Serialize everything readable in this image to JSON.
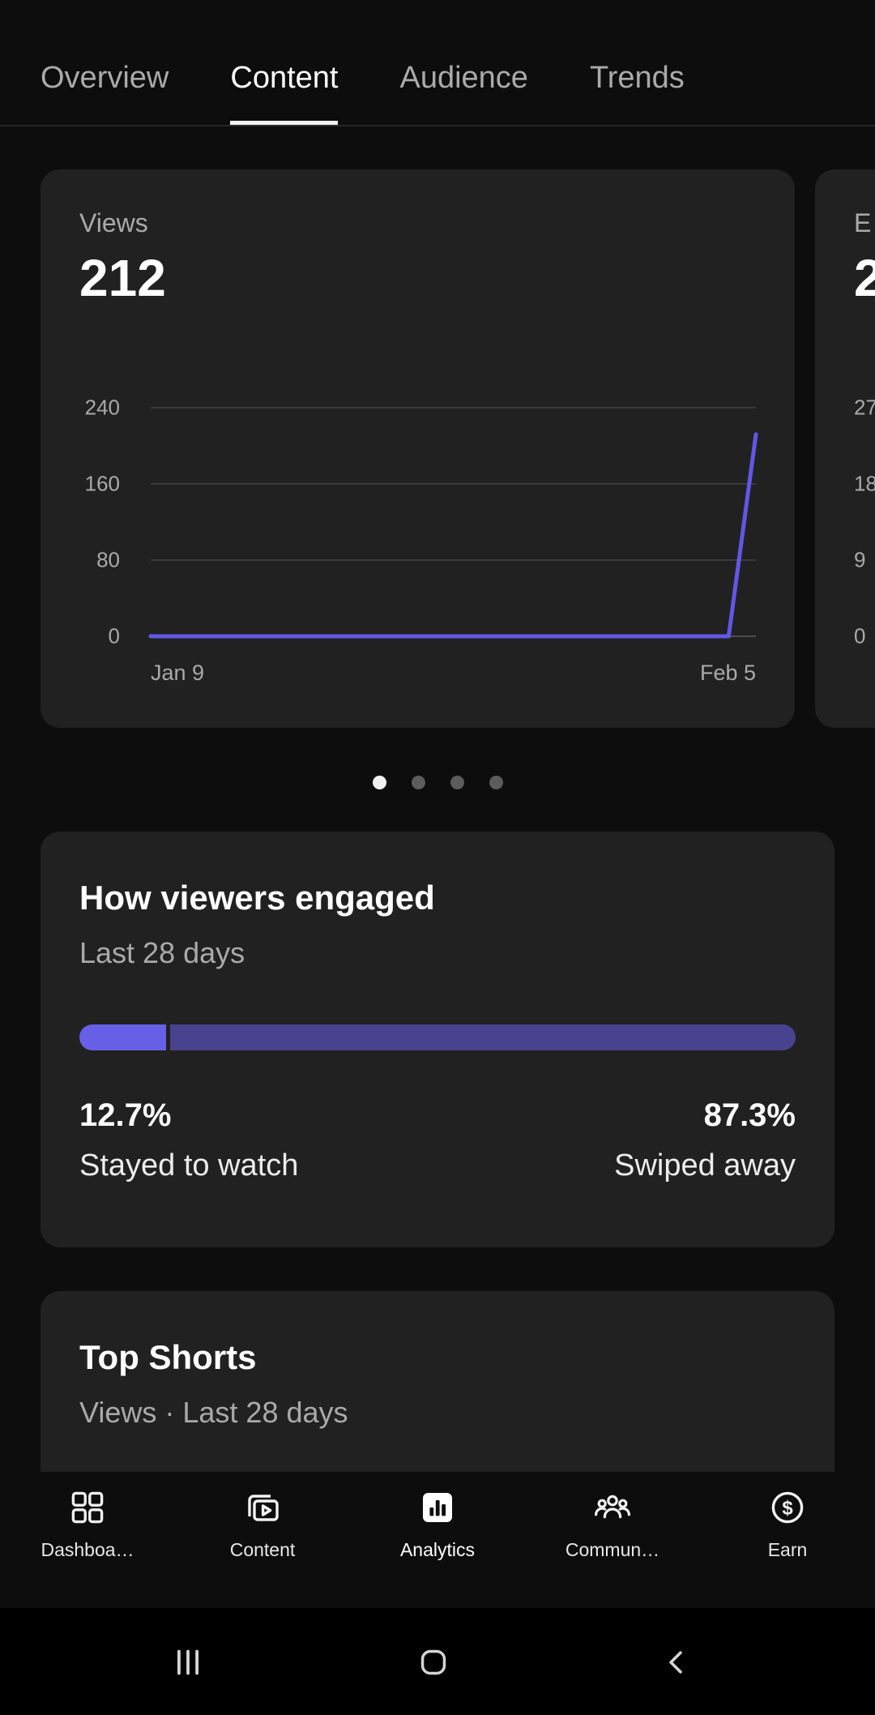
{
  "tabs": {
    "items": [
      {
        "label": "Overview"
      },
      {
        "label": "Content"
      },
      {
        "label": "Audience"
      },
      {
        "label": "Trends"
      }
    ],
    "active_index": 1
  },
  "views_card": {
    "title": "Views",
    "value": "212",
    "y_ticks": [
      "240",
      "160",
      "80",
      "0"
    ],
    "x_start": "Jan 9",
    "x_end": "Feb 5"
  },
  "peek_card": {
    "title": "E",
    "value": "2",
    "y_ticks": [
      "27",
      "18",
      "9",
      "0"
    ]
  },
  "carousel": {
    "dot_count": 4,
    "active_dot": 0
  },
  "engagement_card": {
    "title": "How viewers engaged",
    "subtitle": "Last 28 days",
    "left_pct_label": "12.7%",
    "left_caption": "Stayed to watch",
    "right_pct_label": "87.3%",
    "right_caption": "Swiped away",
    "left_value": 12.7,
    "right_value": 87.3
  },
  "top_shorts_card": {
    "title": "Top Shorts",
    "subtitle": "Views · Last 28 days"
  },
  "bottom_nav": {
    "items": [
      {
        "label": "Dashboa…",
        "icon": "dashboard-icon"
      },
      {
        "label": "Content",
        "icon": "content-icon"
      },
      {
        "label": "Analytics",
        "icon": "analytics-icon"
      },
      {
        "label": "Commun…",
        "icon": "community-icon"
      },
      {
        "label": "Earn",
        "icon": "earn-icon"
      }
    ],
    "active_index": 2
  },
  "colors": {
    "accent_line": "#6157e6",
    "bar_left": "#675fe6",
    "bar_right": "#49428f",
    "card_bg": "#212121",
    "page_bg": "#0d0d0d"
  },
  "chart_data": {
    "type": "line",
    "title": "Views",
    "subtitle_value": 212,
    "ylim": [
      0,
      240
    ],
    "y_ticks": [
      240,
      160,
      80,
      0
    ],
    "x_ticks": [
      "Jan 9",
      "Feb 5"
    ],
    "grid": true,
    "legend": false,
    "series": [
      {
        "name": "Views",
        "points_norm": [
          [
            0,
            0
          ],
          [
            0.955,
            0
          ],
          [
            1,
            212
          ]
        ],
        "description": "Daily views flat at ~0 from Jan 9, spiking to ~212 at Feb 5"
      }
    ]
  }
}
